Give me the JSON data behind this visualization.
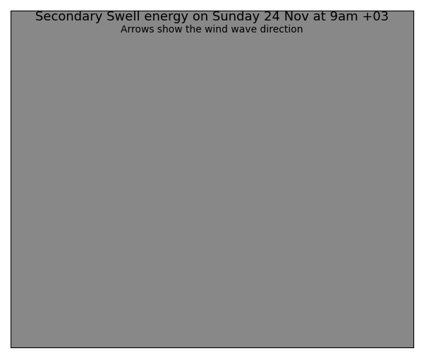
{
  "title": "Secondary Swell energy on Sunday 24 Nov at 9am +03",
  "subtitle": "Arrows show the wind wave direction",
  "title_fontsize": 13,
  "subtitle_fontsize": 10,
  "extent": [
    24.0,
    65.0,
    22.0,
    47.0
  ],
  "figsize": [
    6.01,
    5.07
  ],
  "dpi": 100,
  "background_color": "#ffffff",
  "map_background": "#aaaaaa",
  "ocean_color": "#000000",
  "land_color": "#aaaaaa",
  "border_color": "#000000",
  "border_linewidth": 0.6,
  "coastline_linewidth": 0.6
}
